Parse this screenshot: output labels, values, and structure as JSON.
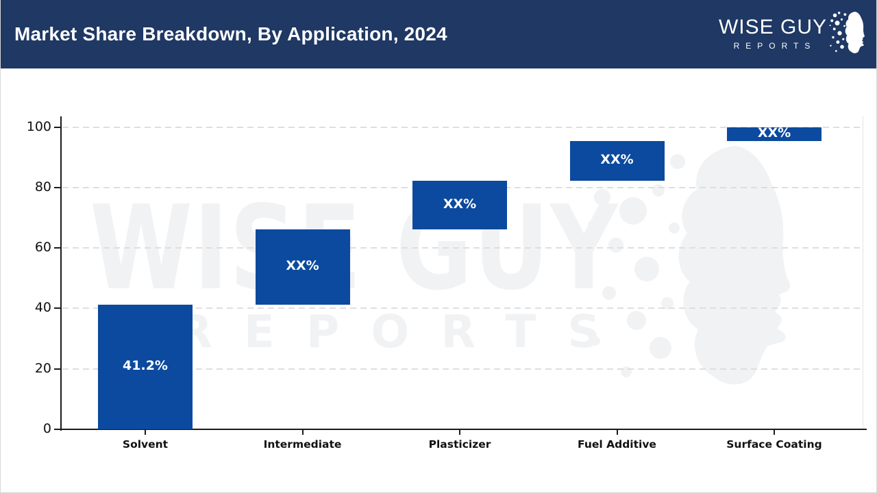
{
  "header": {
    "title": "Market Share Breakdown, By Application, 2024",
    "logo_line1": "WISE GUY",
    "logo_line2": "REPORTS"
  },
  "watermark": {
    "line1": "WISE GUY",
    "line2": "REPORTS"
  },
  "colors": {
    "header_bg": "#1f3864",
    "bar": "#0b4a9e",
    "grid": "#dedede",
    "axis": "#1a1a1a",
    "watermark": "#f1f2f4",
    "page_border": "#d9d9d9",
    "bar_label": "#ffffff"
  },
  "chart_data": {
    "type": "bar",
    "subtype": "waterfall",
    "title": "Market Share Breakdown, By Application, 2024",
    "categories": [
      "Solvent",
      "Intermediate",
      "Plasticizer",
      "Fuel Additive",
      "Surface Coating"
    ],
    "series": [
      {
        "name": "Market Share (%)",
        "segments": [
          {
            "category": "Solvent",
            "start": 0,
            "end": 41.2,
            "label": "41.2%"
          },
          {
            "category": "Intermediate",
            "start": 41.2,
            "end": 66.1,
            "label": "XX%"
          },
          {
            "category": "Plasticizer",
            "start": 66.1,
            "end": 82.2,
            "label": "XX%"
          },
          {
            "category": "Fuel Additive",
            "start": 82.2,
            "end": 95.4,
            "label": "XX%"
          },
          {
            "category": "Surface Coating",
            "start": 95.4,
            "end": 100,
            "label": "XX%"
          }
        ]
      }
    ],
    "ylim": [
      0,
      100
    ],
    "yticks": [
      0,
      20,
      40,
      60,
      80,
      100
    ],
    "xlabel": "",
    "ylabel": "",
    "grid": "horizontal-dashed",
    "legend": "none"
  }
}
